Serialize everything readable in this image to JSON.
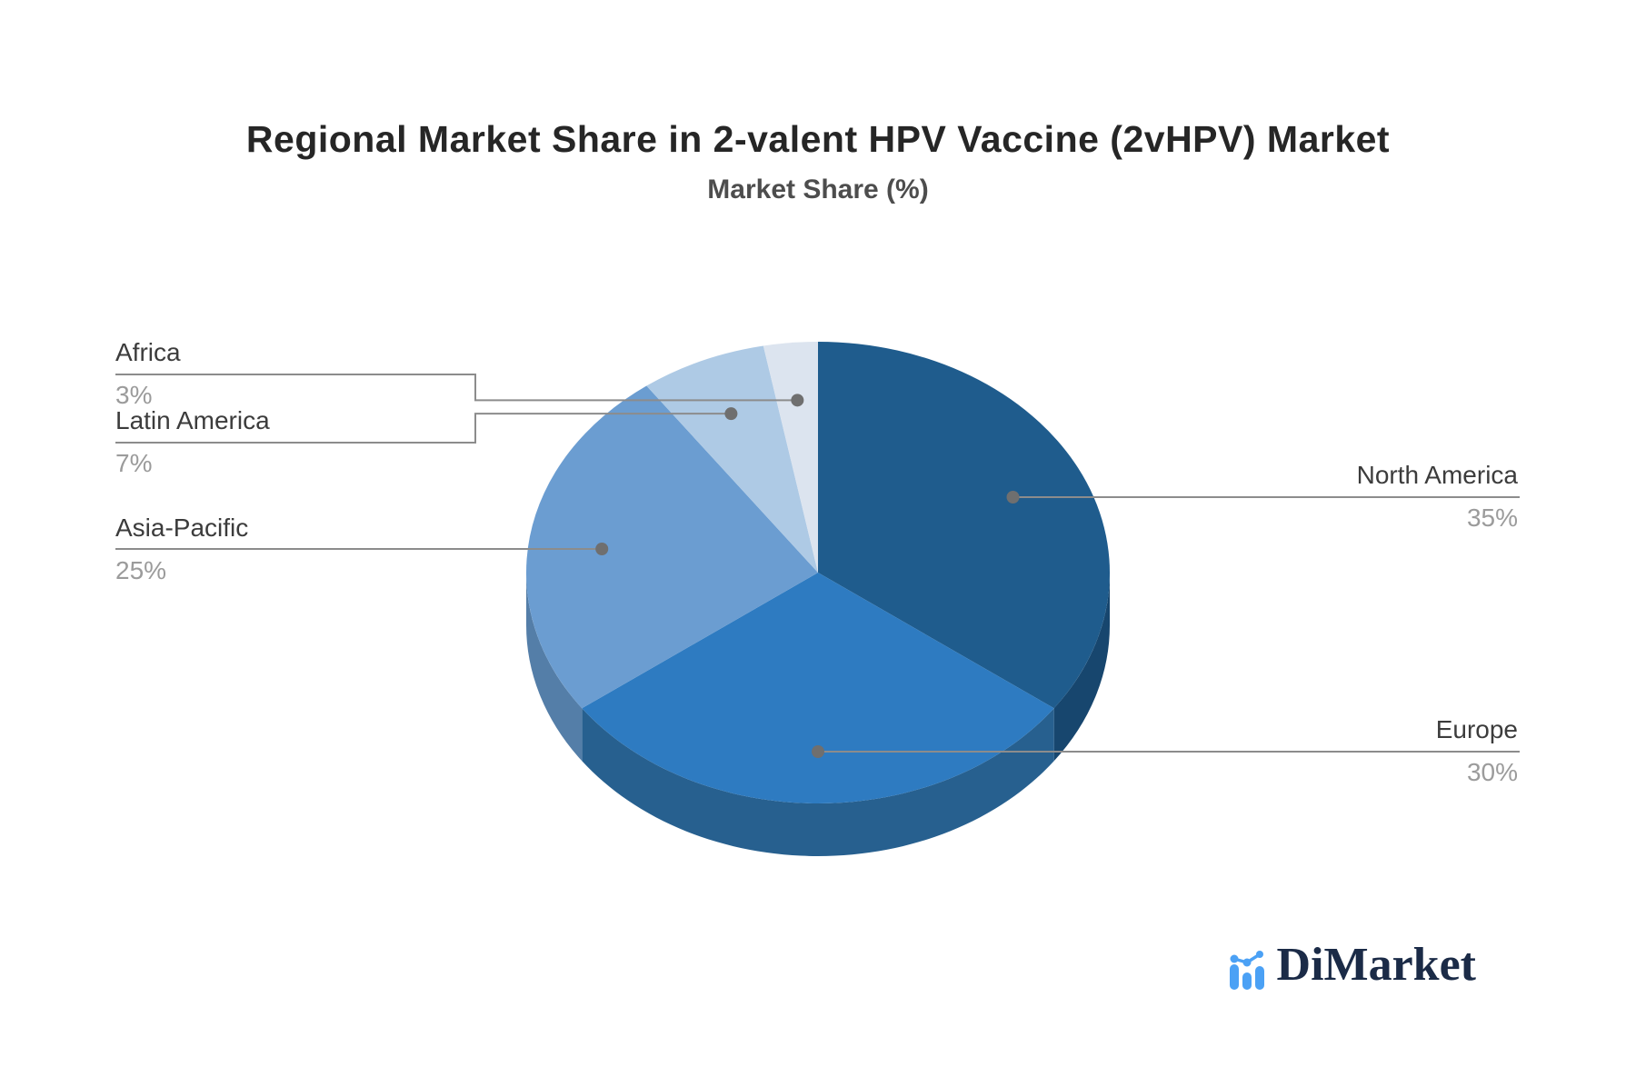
{
  "header": {
    "title": "Regional Market Share in 2-valent HPV Vaccine (2vHPV) Market",
    "subtitle": "Market Share (%)"
  },
  "chart_data": {
    "type": "pie",
    "style": "3d",
    "title": "Regional Market Share in 2-valent HPV Vaccine (2vHPV) Market",
    "subtitle": "Market Share (%)",
    "unit": "%",
    "start_angle_deg": 90,
    "direction": "clockwise",
    "legend_position": "callout-labels",
    "segments": [
      {
        "label": "North America",
        "value": 35,
        "display": "35%",
        "color": "#1F5C8D",
        "side_color": "#17466E",
        "label_side": "right"
      },
      {
        "label": "Europe",
        "value": 30,
        "display": "30%",
        "color": "#2E7BC1",
        "side_color": "#27608F",
        "label_side": "right"
      },
      {
        "label": "Asia-Pacific",
        "value": 25,
        "display": "25%",
        "color": "#6B9DD1",
        "side_color": "#547EA8",
        "label_side": "left"
      },
      {
        "label": "Latin America",
        "value": 7,
        "display": "7%",
        "color": "#AECAE5",
        "side_color": "#8FA9C4",
        "label_side": "left"
      },
      {
        "label": "Africa",
        "value": 3,
        "display": "3%",
        "color": "#DCE4EF",
        "side_color": "#B8C3D2",
        "label_side": "left"
      }
    ],
    "colors": {
      "leader_line": "#8C8C8C",
      "dot": "#6F6F6F",
      "label_text": "#3C3C3C",
      "value_text": "#9B9B9B"
    }
  },
  "footer": {
    "brand": "DiMarket",
    "logo_icon": "bar-line-chart-icon",
    "brand_color": "#1B2B47",
    "icon_color": "#4BA1F5"
  }
}
